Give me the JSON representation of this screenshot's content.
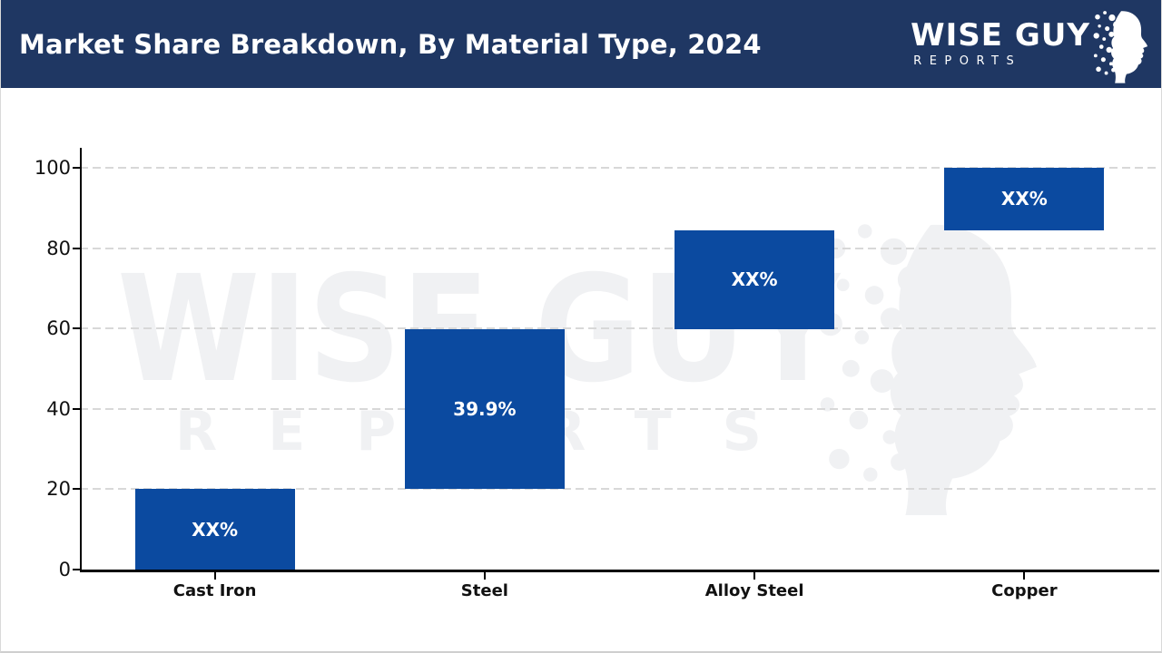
{
  "header": {
    "title": "Market Share Breakdown, By Material Type, 2024",
    "brand": {
      "name": "WISE GUY",
      "tagline": "REPORTS",
      "icon": "head-profile-dots-icon"
    },
    "bg_color": "#1f3763"
  },
  "watermark": {
    "line1": "WISE GUY",
    "line2": "REPORTS"
  },
  "chart_data": {
    "type": "bar",
    "variant": "waterfall",
    "title": "Market Share Breakdown, By Material Type, 2024",
    "xlabel": "",
    "ylabel": "",
    "categories": [
      "Cast Iron",
      "Steel",
      "Alloy Steel",
      "Copper"
    ],
    "segments": [
      {
        "category": "Cast Iron",
        "start": 0,
        "end": 20,
        "value": 20,
        "value_label": "XX%"
      },
      {
        "category": "Steel",
        "start": 20,
        "end": 59.9,
        "value": 39.9,
        "value_label": "39.9%"
      },
      {
        "category": "Alloy Steel",
        "start": 59.9,
        "end": 84.5,
        "value": 24.6,
        "value_label": "XX%"
      },
      {
        "category": "Copper",
        "start": 84.5,
        "end": 100,
        "value": 15.5,
        "value_label": "XX%"
      }
    ],
    "yticks": [
      0,
      20,
      40,
      60,
      80,
      100
    ],
    "ylim": [
      0,
      105
    ],
    "grid": "horizontal-dashed",
    "legend": "none",
    "bar_color": "#0b4aa0",
    "bar_label_color": "#ffffff"
  }
}
